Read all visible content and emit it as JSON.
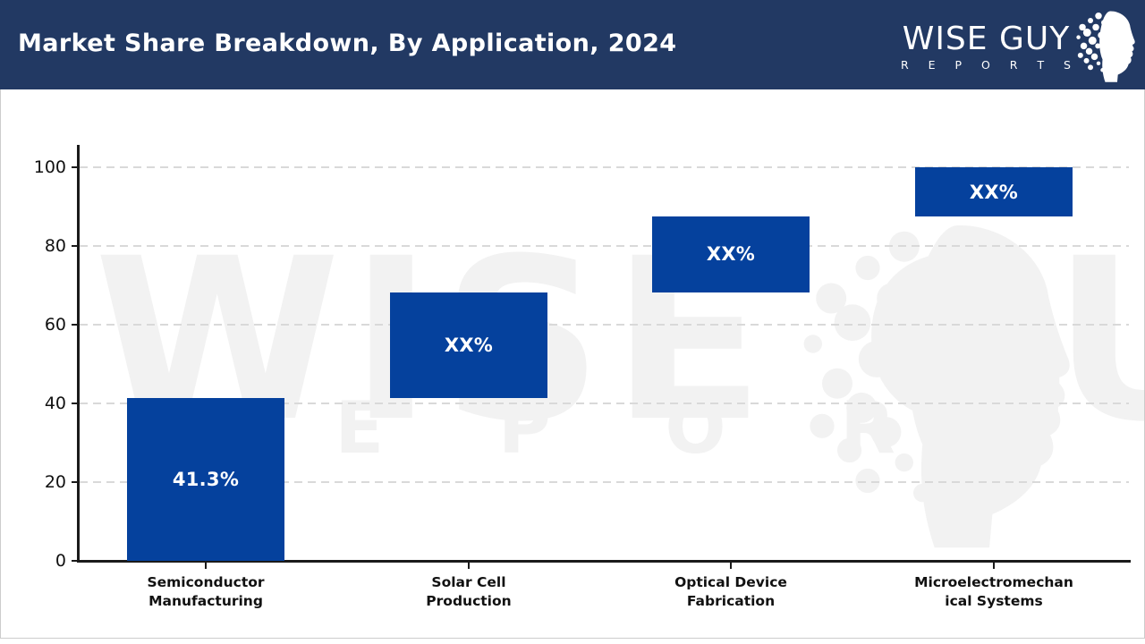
{
  "header": {
    "title": "Market Share Breakdown, By Application, 2024",
    "bg_color": "#223963",
    "logo": {
      "line1": "WISE GUY",
      "line2_spaced": "R E P O R T S"
    }
  },
  "watermark": {
    "line1": "WISE GUY",
    "line2": "R E P O R T S"
  },
  "chart_data": {
    "type": "bar",
    "subtype": "floating-waterfall",
    "title": "Market Share Breakdown, By Application, 2024",
    "categories": [
      "Semiconductor Manufacturing",
      "Solar Cell Production",
      "Optical Device Fabrication",
      "Microelectromechanical Systems"
    ],
    "category_lines": [
      [
        "Semiconductor",
        "Manufacturing"
      ],
      [
        "Solar Cell",
        "Production"
      ],
      [
        "Optical Device",
        "Fabrication"
      ],
      [
        "Microelectromechan",
        "ical Systems"
      ]
    ],
    "bars": [
      {
        "start": 0,
        "end": 41.3,
        "label": "41.3%"
      },
      {
        "start": 41.3,
        "end": 68.2,
        "label": "XX%"
      },
      {
        "start": 68.2,
        "end": 87.5,
        "label": "XX%"
      },
      {
        "start": 87.5,
        "end": 100,
        "label": "XX%"
      }
    ],
    "bar_color": "#05419d",
    "xlabel": "",
    "ylabel": "",
    "yticks": [
      0,
      20,
      40,
      60,
      80,
      100
    ],
    "ylim": [
      0,
      106
    ],
    "grid": true,
    "grid_style": "dashed",
    "legend": false
  }
}
